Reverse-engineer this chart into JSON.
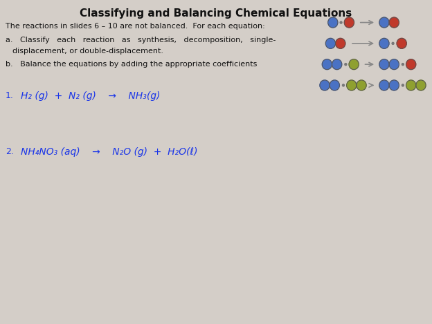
{
  "title": "Classifying and Balancing Chemical Equations",
  "subtitle": "The reactions in slides 6 – 10 are not balanced.  For each equation:",
  "item_a1": "a.   Classify   each   reaction   as   synthesis,   decomposition,   single-",
  "item_a2": "     displacement, or double-displacement.",
  "item_b": "b.   Balance the equations by adding the appropriate coefficients",
  "eq1_num": "1.",
  "eq1_text": "H₂ (g)  +  N₂ (g)    →    NH₃(g)",
  "eq2_num": "2.",
  "eq2_text": "NH₄NO₃ (aq)    →    N₂O (g)  +  H₂O(ℓ)",
  "bg_color": "#d4cec8",
  "text_color": "#111111",
  "eq_color": "#1a35e8",
  "slide_bg": "#cdc7c1",
  "taskbar_color": "#1e1e1e",
  "mol_colors": {
    "blue": "#4a72c4",
    "red": "#c0392b",
    "green_olive": "#8fa030",
    "light_gray": "#d8d8d8"
  },
  "arrow_color": "#888888"
}
